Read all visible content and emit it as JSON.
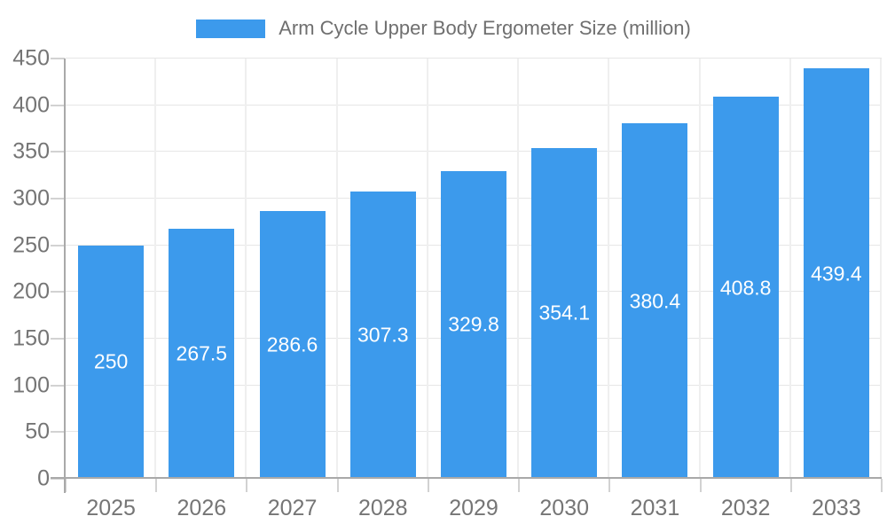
{
  "legend": {
    "label": "Arm Cycle Upper Body Ergometer Size (million)"
  },
  "colors": {
    "bar": "#3c9aec",
    "bar_label": "#ffffff",
    "axis_line": "#a9a9a9",
    "grid_h": "#e6e6e6",
    "grid_v": "#efefef",
    "tick": "#d2d2d2",
    "axis_text": "#757575",
    "legend_text": "#6f6f6f"
  },
  "chart_data": {
    "type": "bar",
    "title": "",
    "xlabel": "",
    "ylabel": "",
    "categories": [
      "2025",
      "2026",
      "2027",
      "2028",
      "2029",
      "2030",
      "2031",
      "2032",
      "2033"
    ],
    "series": [
      {
        "name": "Arm Cycle Upper Body Ergometer Size (million)",
        "values": [
          250,
          267.5,
          286.6,
          307.3,
          329.8,
          354.1,
          380.4,
          408.8,
          439.4
        ]
      }
    ],
    "values": [
      250,
      267.5,
      286.6,
      307.3,
      329.8,
      354.1,
      380.4,
      408.8,
      439.4
    ],
    "value_labels": [
      "250",
      "267.5",
      "286.6",
      "307.3",
      "329.8",
      "354.1",
      "380.4",
      "408.8",
      "439.4"
    ],
    "ylim": [
      0,
      450
    ],
    "yticks": [
      0,
      50,
      100,
      150,
      200,
      250,
      300,
      350,
      400,
      450
    ],
    "grid": true,
    "legend_position": "top"
  }
}
